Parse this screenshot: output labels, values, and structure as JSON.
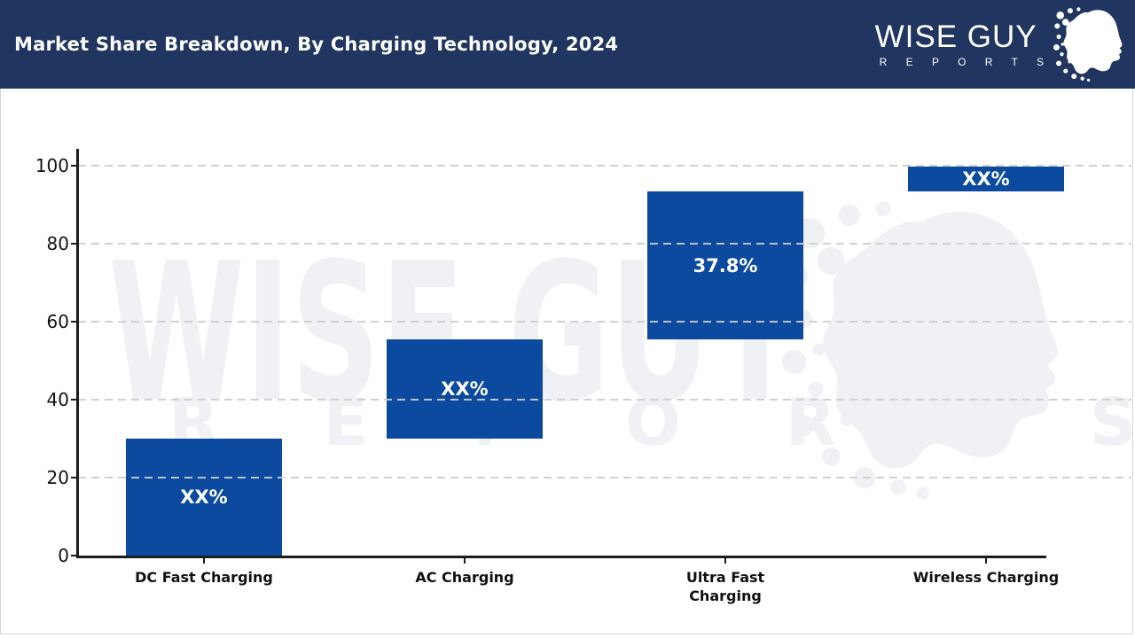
{
  "header": {
    "title": "Market Share Breakdown, By Charging Technology, 2024",
    "logo": {
      "name": "WISE GUY",
      "sub": "R E P O R T S"
    }
  },
  "watermark": {
    "line1": "WISE GUY",
    "line2": "R E P O R T S"
  },
  "chart_data": {
    "type": "bar",
    "subtype": "waterfall",
    "title": "Market Share Breakdown, By Charging Technology, 2024",
    "categories": [
      "DC Fast Charging",
      "AC Charging",
      "Ultra Fast\nCharging",
      "Wireless Charging"
    ],
    "segments": [
      {
        "category": "DC Fast Charging",
        "start": 0,
        "end": 30.1,
        "value": 30.1,
        "value_label": "XX%"
      },
      {
        "category": "AC Charging",
        "start": 30.1,
        "end": 55.5,
        "value": 25.4,
        "value_label": "XX%"
      },
      {
        "category": "Ultra Fast Charging",
        "start": 55.5,
        "end": 93.3,
        "value": 37.8,
        "value_label": "37.8%"
      },
      {
        "category": "Wireless Charging",
        "start": 93.3,
        "end": 99.7,
        "value": 6.4,
        "value_label": "XX%"
      }
    ],
    "xlabel": "",
    "ylabel": "",
    "ylim": [
      0,
      100
    ],
    "yticks": [
      0,
      20,
      40,
      60,
      80,
      100
    ],
    "grid": "horizontal-dashed",
    "legend": "none",
    "bar_color": "#0b4a9e",
    "bar_label_color": "#ffffff"
  },
  "colors": {
    "header_bg": "#20355f",
    "bar": "#0b4a9e",
    "grid": "#cdcdcd",
    "axis": "#1c1c1c",
    "watermark": "#f0f1f4"
  }
}
